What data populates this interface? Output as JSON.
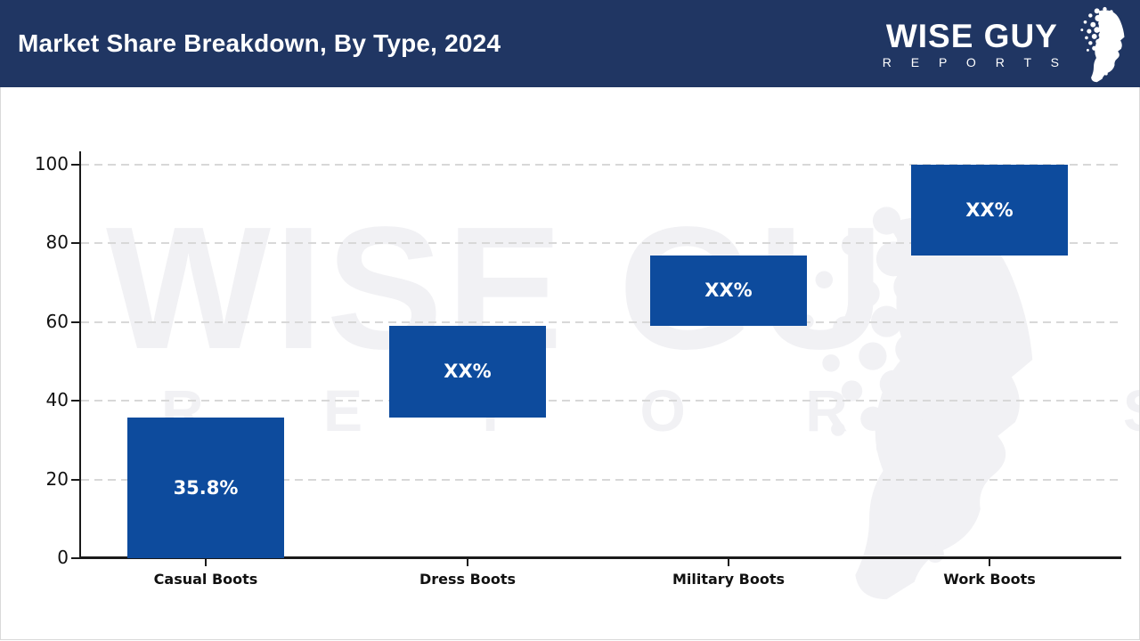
{
  "header": {
    "title": "Market Share Breakdown, By Type, 2024",
    "logo": {
      "brand": "WISE GUY",
      "sub": "R E P O R T S"
    }
  },
  "watermark": {
    "brand": "WISE GUY",
    "sub": "R E P O R T S"
  },
  "chart_data": {
    "type": "bar",
    "subtype": "floating-waterfall",
    "title": "Market Share Breakdown, By Type, 2024",
    "categories": [
      "Casual Boots",
      "Dress Boots",
      "Military Boots",
      "Work Boots"
    ],
    "segments": [
      {
        "category": "Casual Boots",
        "start": 0,
        "end": 35.8,
        "label": "35.8%"
      },
      {
        "category": "Dress Boots",
        "start": 35.8,
        "end": 59,
        "label": "XX%"
      },
      {
        "category": "Military Boots",
        "start": 59,
        "end": 77,
        "label": "XX%"
      },
      {
        "category": "Work Boots",
        "start": 77,
        "end": 100,
        "label": "XX%"
      }
    ],
    "xlabel": "",
    "ylabel": "",
    "ylim": [
      0,
      104.5
    ],
    "yticks": [
      0,
      20,
      40,
      60,
      80,
      100
    ],
    "grid": "horizontal-dashed",
    "legend": "none",
    "bar_color": "#0D4B9D",
    "bar_label_color": "#FFFFFF"
  },
  "colors": {
    "header_bg": "#203663",
    "bar": "#0D4B9D",
    "grid": "#D8D8D8",
    "axis": "#1A1A1A",
    "text": "#111111",
    "watermark": "#F1F1F4",
    "frame_border": "#D9D9D9"
  }
}
